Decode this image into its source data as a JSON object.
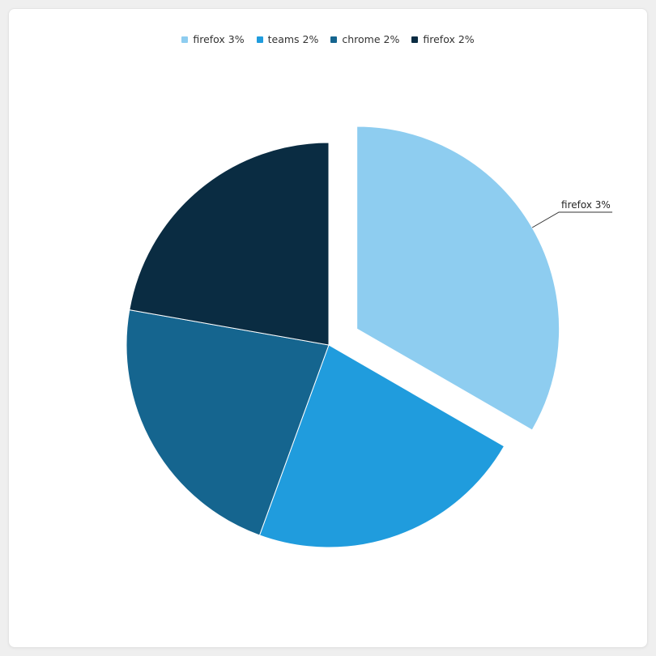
{
  "page": {
    "background_color": "#efefef",
    "card_background_color": "#ffffff"
  },
  "chart_data": {
    "type": "pie",
    "title": "",
    "legend_position": "top",
    "start_angle_deg": 0,
    "direction": "clockwise",
    "total": 9,
    "slices": [
      {
        "label": "firefox 3%",
        "name": "firefox",
        "percent_text": "3%",
        "value": 3,
        "color": "#8ecdf0",
        "exploded": true
      },
      {
        "label": "teams 2%",
        "name": "teams",
        "percent_text": "2%",
        "value": 2,
        "color": "#209cdd",
        "exploded": false
      },
      {
        "label": "chrome 2%",
        "name": "chrome",
        "percent_text": "2%",
        "value": 2,
        "color": "#15658f",
        "exploded": false
      },
      {
        "label": "firefox 2%",
        "name": "firefox",
        "percent_text": "2%",
        "value": 2,
        "color": "#0a2c42",
        "exploded": false
      }
    ],
    "annotations": [
      {
        "slice_index": 0,
        "text": "firefox 3%"
      }
    ]
  },
  "legend": {
    "items": [
      {
        "label": "firefox 3%",
        "color": "#8ecdf0"
      },
      {
        "label": "teams 2%",
        "color": "#209cdd"
      },
      {
        "label": "chrome 2%",
        "color": "#15658f"
      },
      {
        "label": "firefox 2%",
        "color": "#0a2c42"
      }
    ]
  }
}
